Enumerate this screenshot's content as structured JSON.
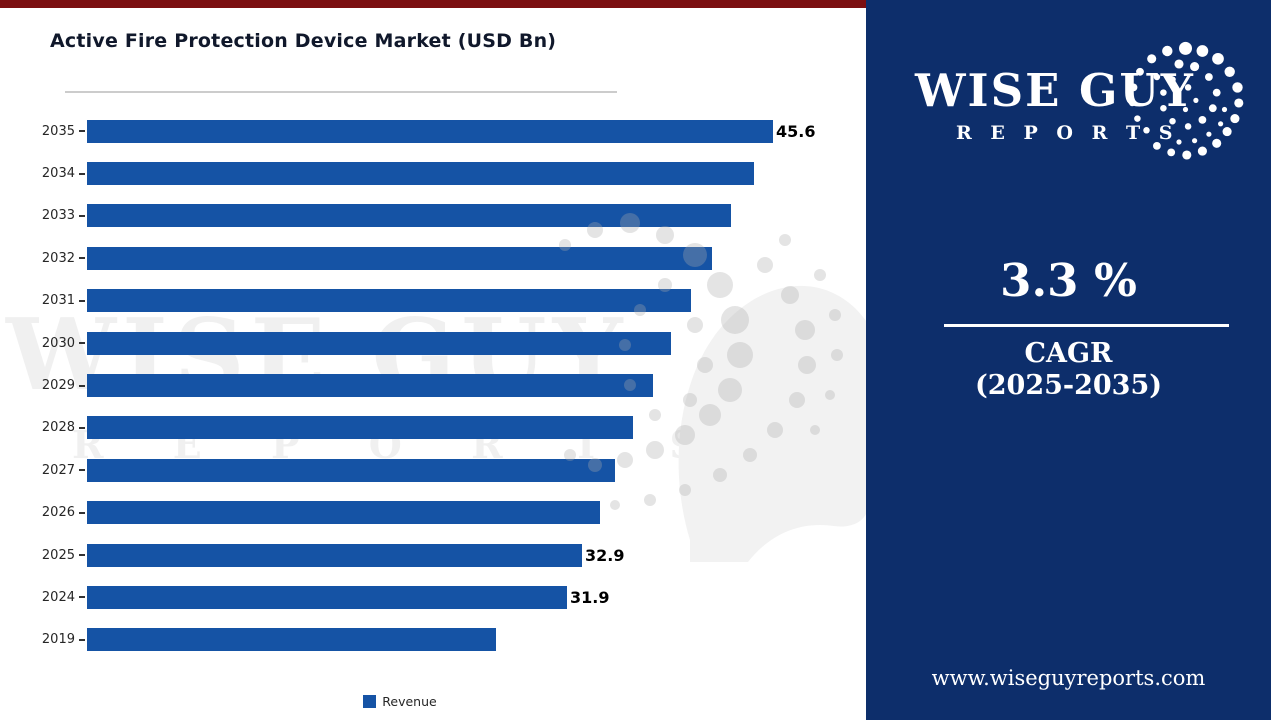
{
  "colors": {
    "bar": "#1553a5",
    "panel_bg": "#0d2e6b",
    "top_strip": "#7b0f11"
  },
  "chart_data": {
    "type": "bar",
    "orientation": "horizontal",
    "title": "Active Fire Protection Device Market (USD Bn)",
    "series_name": "Revenue",
    "categories": [
      "2035",
      "2034",
      "2033",
      "2032",
      "2031",
      "2030",
      "2029",
      "2028",
      "2027",
      "2026",
      "2025",
      "2024",
      "2019"
    ],
    "values": [
      45.6,
      44.3,
      42.8,
      41.5,
      40.1,
      38.8,
      37.6,
      36.3,
      35.1,
      34.1,
      32.9,
      31.9,
      27.2
    ],
    "data_labels": {
      "2035": "45.6",
      "2025": "32.9",
      "2024": "31.9"
    },
    "xlim": [
      0,
      46.5
    ],
    "grid": false,
    "legend_position": "bottom",
    "bar_color": "#1553a5"
  },
  "watermark": {
    "line1": "WISE GUY",
    "line2": "R E P O R T S"
  },
  "panel": {
    "logo_line1": "WISE GUY",
    "logo_line2": "R E P O R T S",
    "cagr_value": "3.3 %",
    "cagr_line1": "CAGR",
    "cagr_line2": "(2025-2035)",
    "website": "www.wiseguyreports.com"
  }
}
